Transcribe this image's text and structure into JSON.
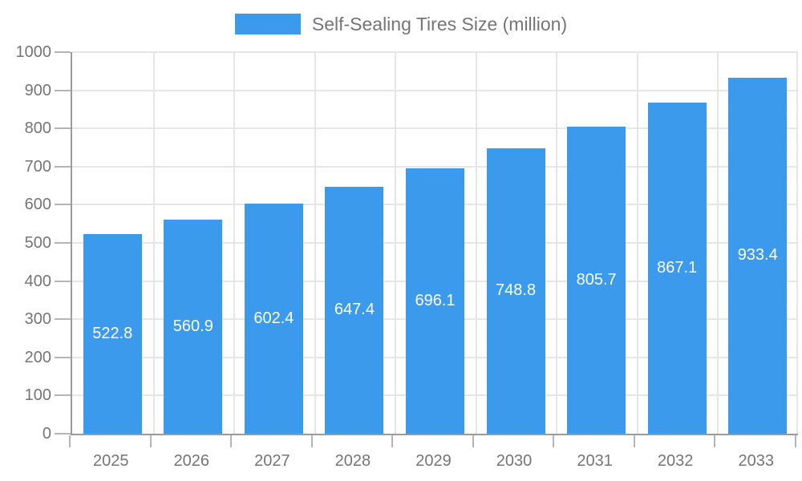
{
  "chart_data": {
    "type": "bar",
    "title": "Self-Sealing Tires Size (million)",
    "categories": [
      "2025",
      "2026",
      "2027",
      "2028",
      "2029",
      "2030",
      "2031",
      "2032",
      "2033"
    ],
    "series": [
      {
        "name": "Self-Sealing Tires Size (million)",
        "values": [
          522.8,
          560.9,
          602.4,
          647.4,
          696.1,
          748.8,
          805.7,
          867.1,
          933.4
        ]
      }
    ],
    "xlabel": "",
    "ylabel": "",
    "ylim": [
      0,
      1000
    ],
    "ytick_step": 100,
    "ytick_labels": [
      "0",
      "100",
      "200",
      "300",
      "400",
      "500",
      "600",
      "700",
      "800",
      "900",
      "1000"
    ],
    "grid": true,
    "legend_position": "top-center",
    "value_labels_inside_bars": true,
    "colors": {
      "bar": "#3C9AEC",
      "grid": "#E6E6E6",
      "axis": "#9B9B9B",
      "tick": "#B5B5B5",
      "axis_text": "#757575",
      "value_label": "#FFFFFF",
      "background": "#FFFFFF"
    }
  }
}
